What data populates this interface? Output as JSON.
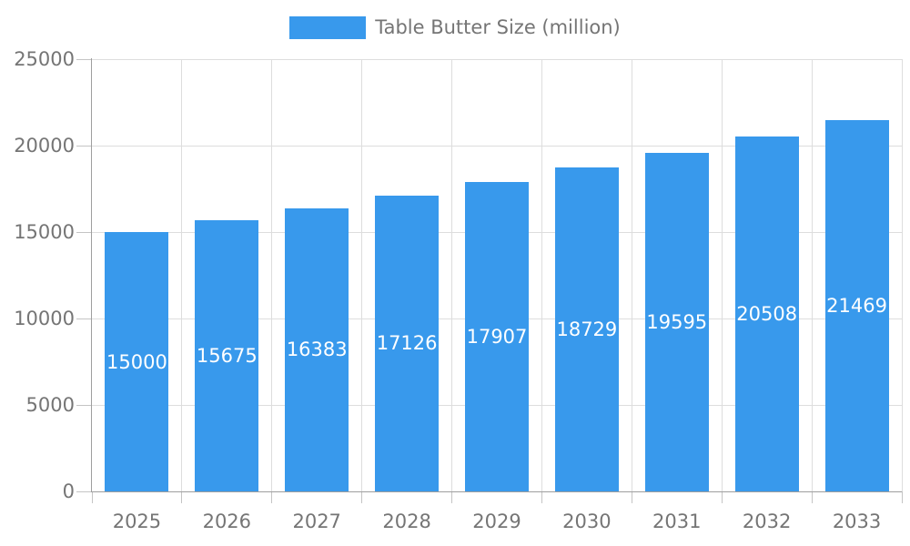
{
  "chart_data": {
    "type": "bar",
    "title": "",
    "legend": {
      "label": "Table Butter Size (million)",
      "position": "top-center"
    },
    "categories": [
      "2025",
      "2026",
      "2027",
      "2028",
      "2029",
      "2030",
      "2031",
      "2032",
      "2033"
    ],
    "series": [
      {
        "name": "Table Butter Size (million)",
        "values": [
          15000,
          15675,
          16383,
          17126,
          17907,
          18729,
          19595,
          20508,
          21469
        ]
      }
    ],
    "value_labels_visible": true,
    "xlabel": "",
    "ylabel": "",
    "ylim": [
      0,
      25000
    ],
    "yticks": [
      0,
      5000,
      10000,
      15000,
      20000,
      25000
    ],
    "grid": "horizontal-and-vertical",
    "colors": {
      "bar": "#3899EC",
      "bar_value_label": "#FFFFFF",
      "axis_text": "#757575",
      "grid_line": "#DDDDDD",
      "axis_line": "#9E9E9E",
      "tick_line": "#C4C4C4",
      "background": "#FFFFFF"
    }
  }
}
